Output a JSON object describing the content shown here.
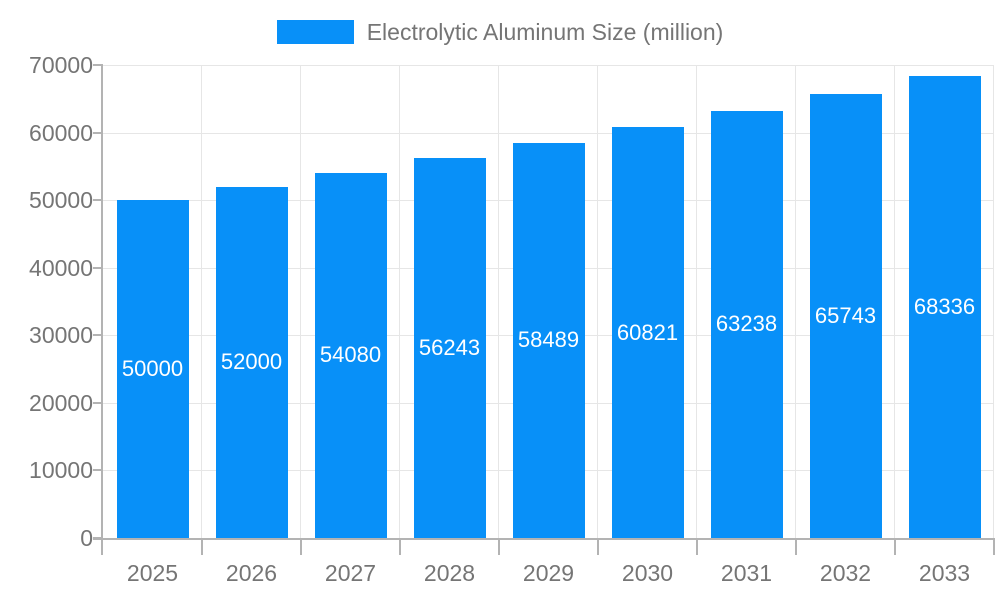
{
  "chart_data": {
    "type": "bar",
    "title": "Electrolytic Aluminum Size (million)",
    "legend": [
      "Electrolytic Aluminum Size (million)"
    ],
    "legend_position": "top-center",
    "categories": [
      "2025",
      "2026",
      "2027",
      "2028",
      "2029",
      "2030",
      "2031",
      "2032",
      "2033"
    ],
    "series": [
      {
        "name": "Electrolytic Aluminum Size (million)",
        "values": [
          50000,
          52000,
          54080,
          56243,
          58489,
          60821,
          63238,
          65743,
          68336
        ]
      }
    ],
    "bar_value_labels": [
      "50000",
      "52000",
      "54080",
      "56243",
      "58489",
      "60821",
      "63238",
      "65743",
      "68336"
    ],
    "xlabel": "",
    "ylabel": "",
    "ylim": [
      0,
      70000
    ],
    "yticks": [
      0,
      10000,
      20000,
      30000,
      40000,
      50000,
      60000,
      70000
    ],
    "ytick_labels": [
      "0",
      "10000",
      "20000",
      "30000",
      "40000",
      "50000",
      "60000",
      "70000"
    ],
    "grid": true,
    "colors": {
      "bar": "#0890f8",
      "bar_label_text": "#ffffff",
      "axis_text": "#757575",
      "axis_line": "#b3b3b3",
      "gridline": "#e6e6e6",
      "background": "#ffffff"
    }
  }
}
